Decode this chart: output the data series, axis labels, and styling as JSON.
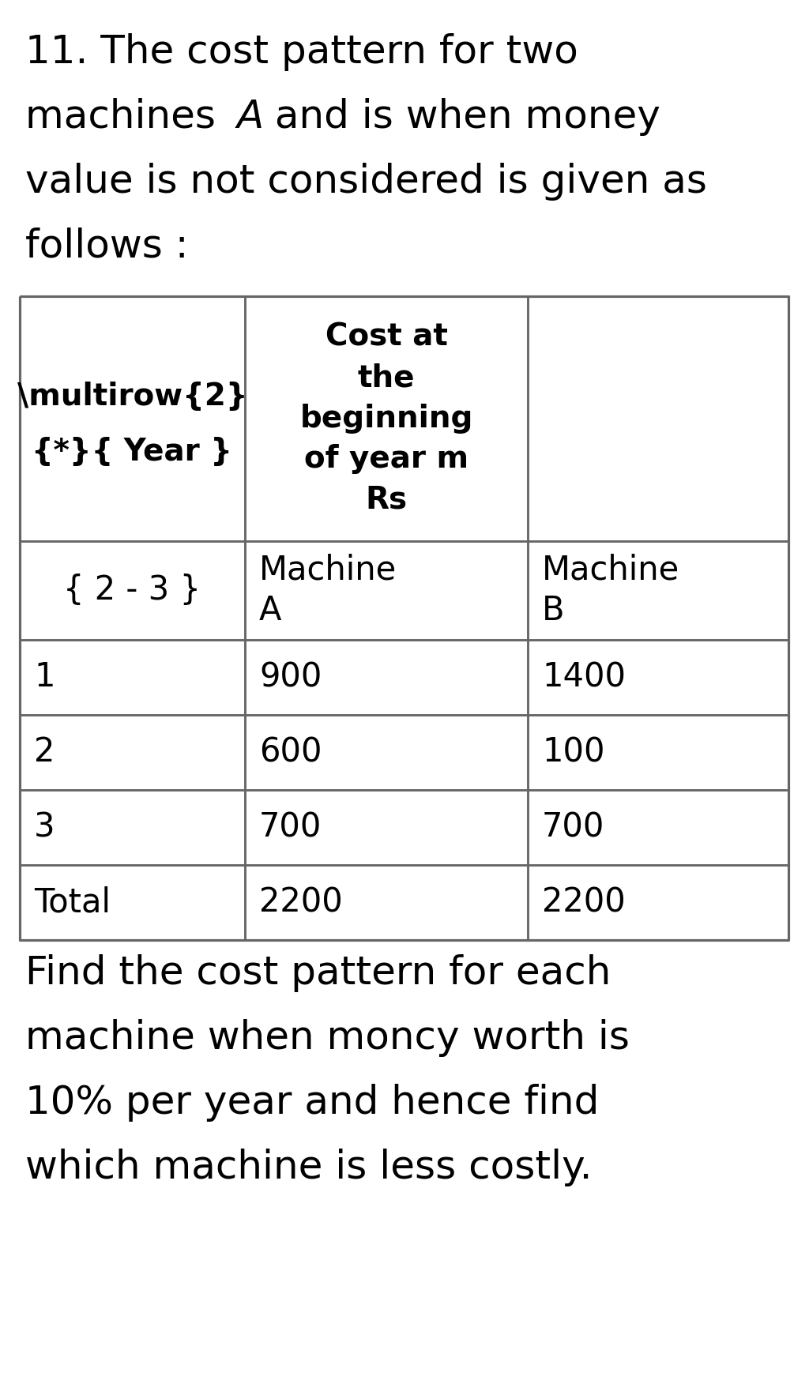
{
  "title_line1": "11. The cost pattern for two",
  "title_line2_part1": "machines ",
  "title_line2_A": "A",
  "title_line2_part2": " and is when money",
  "title_line3": "value is not considered is given as",
  "title_line4": "follows :",
  "col0_header_line1": "\\multirow{2}",
  "col0_header_line2": "{*}{ Year }",
  "col1_header": "Cost at\nthe\nbeginning\nof year m\nRs",
  "col2_header": "",
  "subheader_col0": "{ 2 - 3 }",
  "subheader_col1": "Machine\nA",
  "subheader_col2": "Machine\nB",
  "rows": [
    [
      "1",
      "900",
      "1400"
    ],
    [
      "2",
      "600",
      "100"
    ],
    [
      "3",
      "700",
      "700"
    ],
    [
      "Total",
      "2200",
      "2200"
    ]
  ],
  "footer_line1": "Find the cost pattern for each",
  "footer_line2": "machine when moncy worth is",
  "footer_line3": "10% per year and hence find",
  "footer_line4": "which machine is less costly.",
  "bg_color": "#ffffff",
  "text_color": "#000000",
  "border_color": "#666666",
  "font_size_title": 36,
  "font_size_header_bold": 28,
  "font_size_table": 30,
  "font_size_footer": 36,
  "fig_width": 10.24,
  "fig_height": 17.47,
  "dpi": 100
}
